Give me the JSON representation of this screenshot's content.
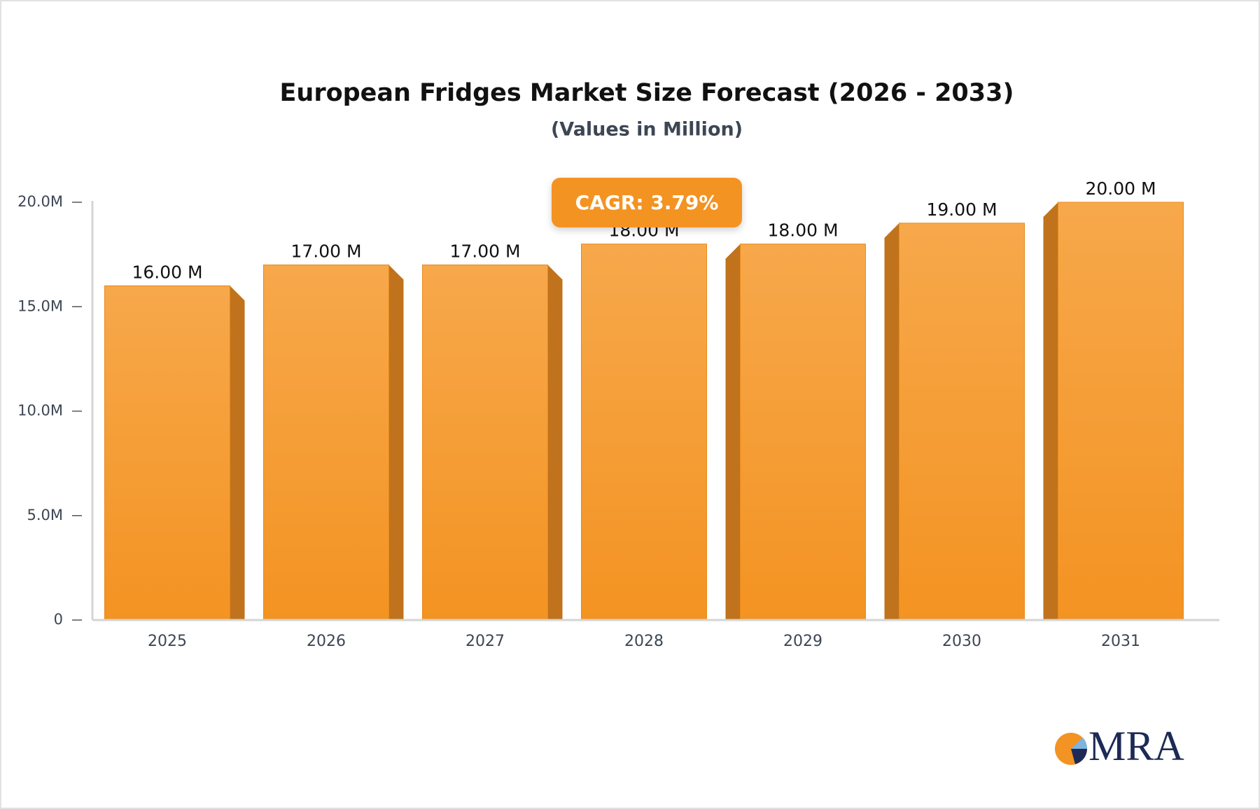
{
  "chart_data": {
    "type": "bar",
    "title": "European Fridges Market Size Forecast (2026 - 2033)",
    "subtitle": "(Values in Million)",
    "annotation": "CAGR: 3.79%",
    "logo": "MRA",
    "categories": [
      "2025",
      "2026",
      "2027",
      "2028",
      "2029",
      "2030",
      "2031"
    ],
    "values": [
      16,
      17,
      17,
      18,
      18,
      19,
      20
    ],
    "value_labels": [
      "16.00 M",
      "17.00 M",
      "17.00 M",
      "18.00 M",
      "18.00 M",
      "19.00 M",
      "20.00 M"
    ],
    "color": "#f5a03a",
    "ylim": [
      0,
      20
    ],
    "yticks": [
      0,
      {
        "value": 5,
        "label": "5.0M"
      },
      {
        "value": 10,
        "label": "10.0M"
      },
      {
        "value": 15,
        "label": "15.0M"
      },
      {
        "value": 20,
        "label": "20.0M"
      }
    ],
    "grid": false
  }
}
